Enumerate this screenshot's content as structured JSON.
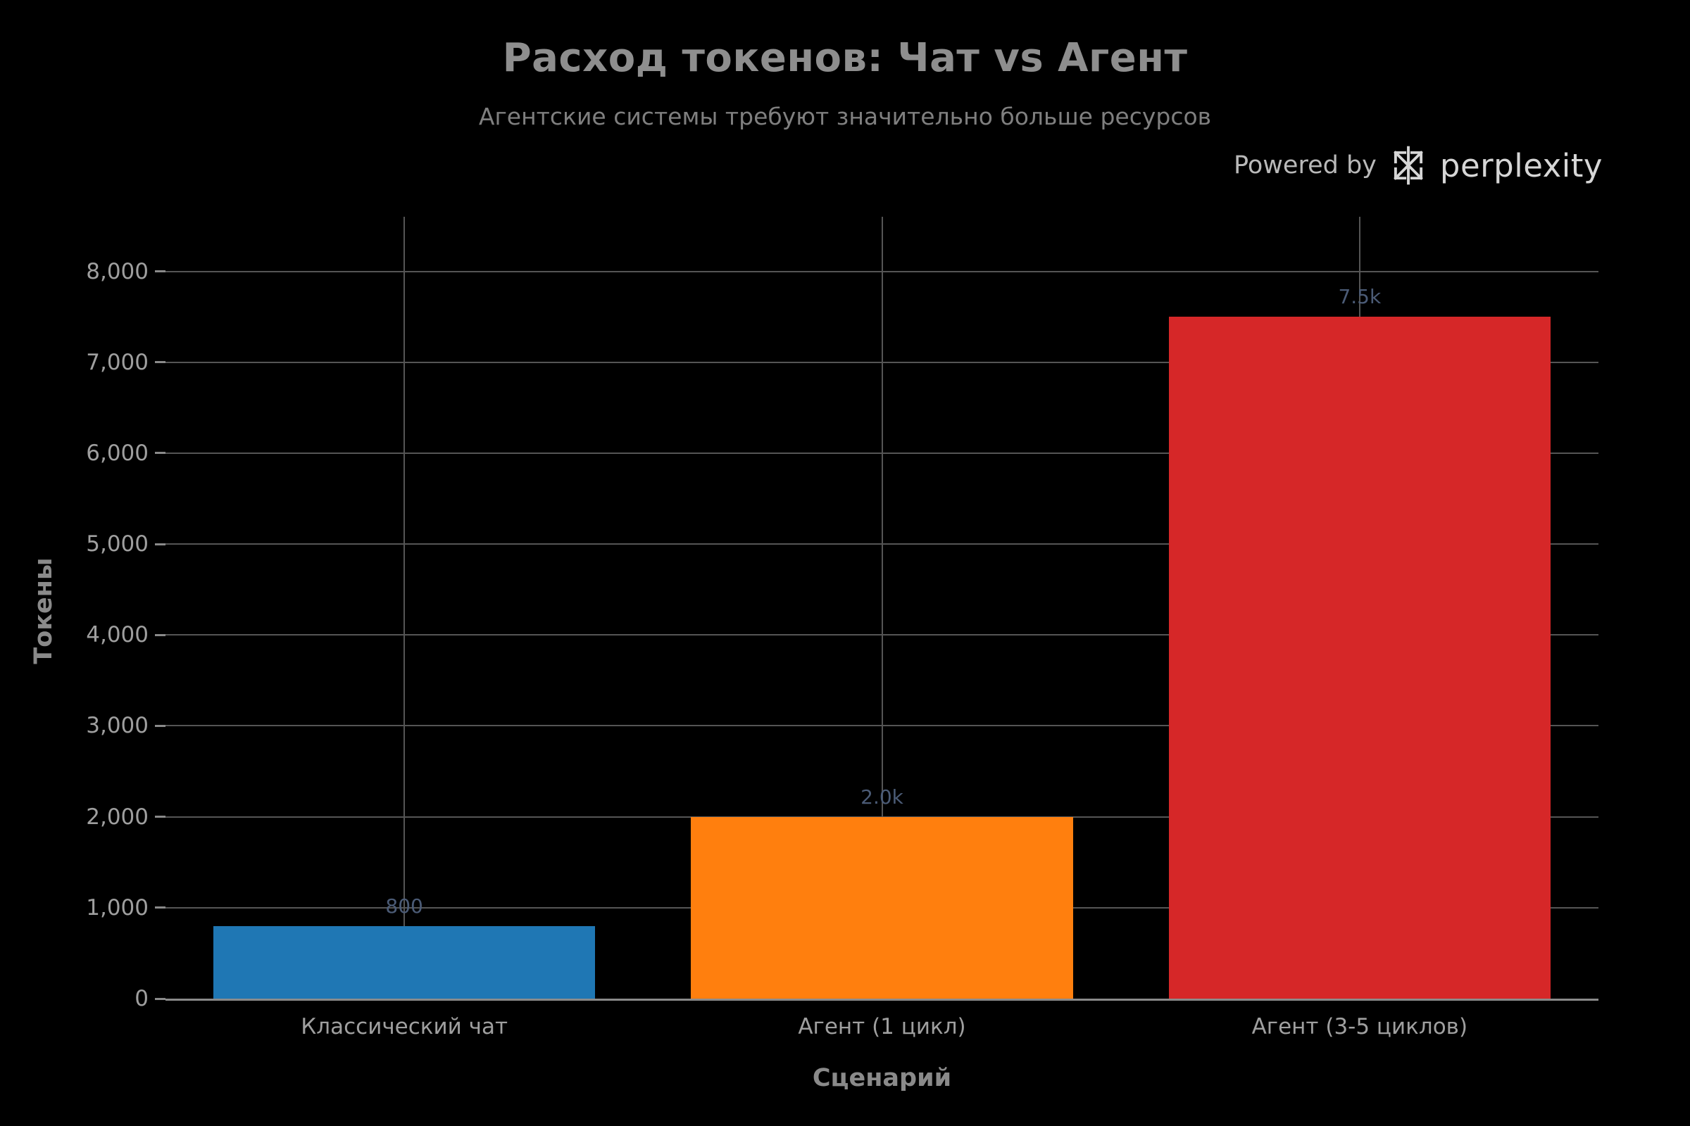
{
  "header": {
    "title": "Расход токенов: Чат vs Агент",
    "subtitle": "Агентские системы требуют значительно больше ресурсов",
    "powered_by": "Powered by",
    "brand": "perplexity"
  },
  "chart_data": {
    "type": "bar",
    "title": "Расход токенов: Чат vs Агент",
    "subtitle": "Агентские системы требуют значительно больше ресурсов",
    "xlabel": "Сценарий",
    "ylabel": "Токены",
    "categories": [
      "Классический чат",
      "Агент (1 цикл)",
      "Агент (3-5 циклов)"
    ],
    "values": [
      800,
      2000,
      7500
    ],
    "value_labels": [
      "800",
      "2.0k",
      "7.5k"
    ],
    "bar_colors": [
      "#1f77b4",
      "#ff7f0e",
      "#d62728"
    ],
    "ylim": [
      0,
      8600
    ],
    "yticks": [
      0,
      1000,
      2000,
      3000,
      4000,
      5000,
      6000,
      7000,
      8000
    ],
    "ytick_labels": [
      "0",
      "1,000",
      "2,000",
      "3,000",
      "4,000",
      "5,000",
      "6,000",
      "7,000",
      "8,000"
    ],
    "grid": true,
    "legend": "none",
    "background": "#000000",
    "colors": {
      "grid": "#555555",
      "axis": "#8a8a8a",
      "title": "#8e8e8e",
      "subtitle": "#7f7f7f",
      "tick_label": "#9f9f9f",
      "value_label": "#4b5b76",
      "brand": "#d6d6d6"
    }
  }
}
